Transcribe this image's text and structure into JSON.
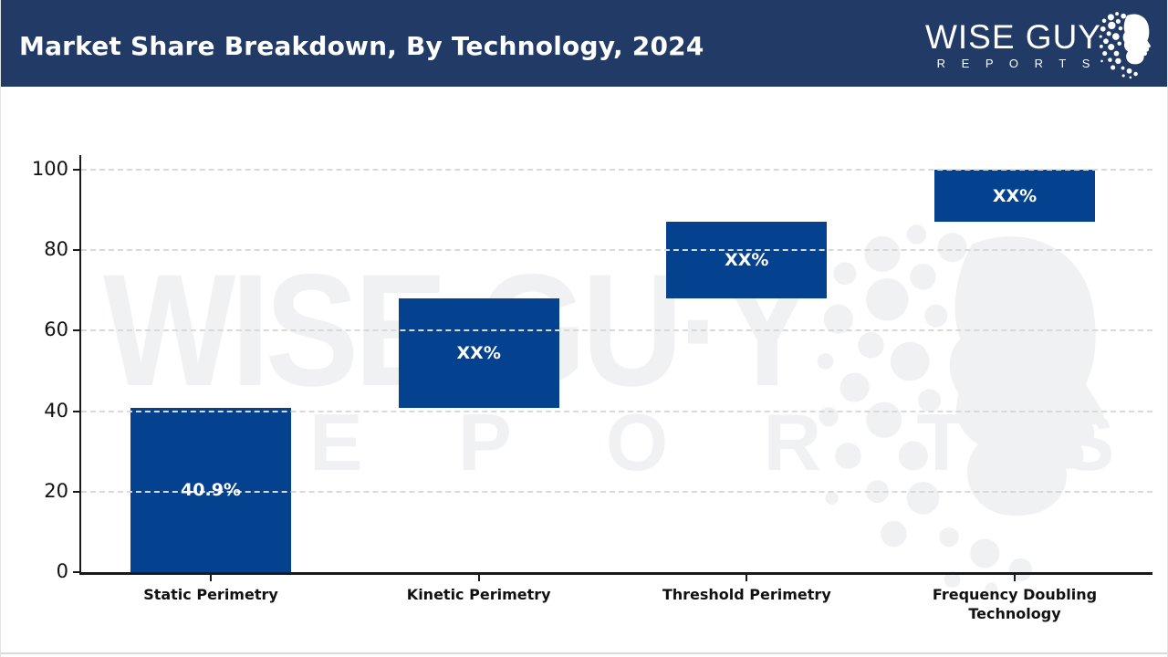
{
  "header": {
    "title": "Market Share Breakdown, By Technology, 2024",
    "background_color": "#213a66",
    "brand": {
      "line1": "WISE GUY",
      "line2": "R E P O R T S"
    }
  },
  "watermark": {
    "line1": "WISE GU·Y",
    "line2": "R E P O R T S"
  },
  "chart_data": {
    "type": "bar",
    "subtype": "waterfall",
    "title": "Market Share Breakdown, By Technology, 2024",
    "categories": [
      "Static Perimetry",
      "Kinetic Perimetry",
      "Threshold Perimetry",
      "Frequency Doubling Technology"
    ],
    "series": [
      {
        "name": "Market share (%)",
        "segments": [
          {
            "category": "Static Perimetry",
            "start": 0,
            "end": 40.9,
            "label": "40.9%"
          },
          {
            "category": "Kinetic Perimetry",
            "start": 40.9,
            "end": 68,
            "label": "XX%"
          },
          {
            "category": "Threshold Perimetry",
            "start": 68,
            "end": 87,
            "label": "XX%"
          },
          {
            "category": "Frequency Doubling Technology",
            "start": 87,
            "end": 100,
            "label": "XX%"
          }
        ]
      }
    ],
    "xlabel": "",
    "ylabel": "",
    "ylim": [
      0,
      100
    ],
    "yticks": [
      0,
      20,
      40,
      60,
      80,
      100
    ],
    "grid": "horizontal dashed, drawn over bars",
    "legend": "none",
    "bar_color": "#04418f",
    "bar_label_color": "#ffffff",
    "axis_color": "#1a1a1a",
    "grid_color": "#d9d9d9"
  }
}
